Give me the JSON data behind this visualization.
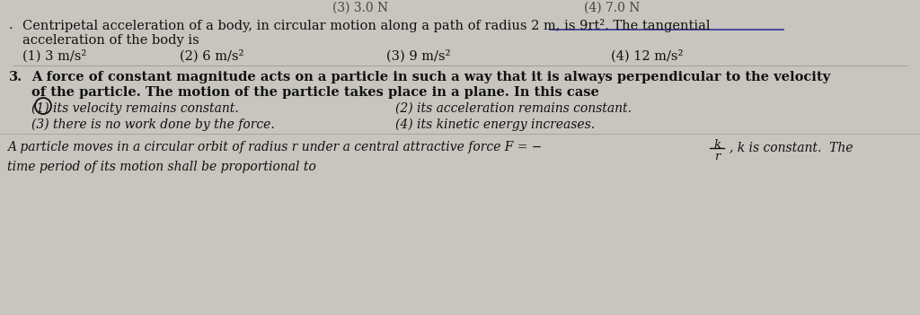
{
  "bg_color": "#c8c5be",
  "text_color": "#111111",
  "top_text_left": "(3) 3.0 N",
  "top_text_right": "(4) 7.0 N",
  "q2_num": ".",
  "q2_line1": "Centripetal acceleration of a body, in circular motion along a path of radius 2 m, is 9rt². The tangential",
  "q2_line2": "acceleration of the body is",
  "q2_opt1": "(1) 3 m/s²",
  "q2_opt2": "(2) 6 m/s²",
  "q2_opt3": "(3) 9 m/s²",
  "q2_opt4": "(4) 12 m/s²",
  "q3_num": "3.",
  "q3_line1": "A force of constant magnitude acts on a particle in such a way that it is always perpendicular to the velocity",
  "q3_line2": "of the particle. The motion of the particle takes place in a plane. In this case",
  "q3_opt1": "(1) its velocity remains constant.",
  "q3_opt2": "(2) its acceleration remains constant.",
  "q3_opt3": "(3) there is no work done by the force.",
  "q3_opt4": "(4) its kinetic energy increases.",
  "q4_prefix": "A particle moves in a circular orbit of radius r under a central attractive force F = −",
  "q4_frac_num": "k",
  "q4_frac_den": "r",
  "q4_suffix": ", k is constant.  The",
  "q4_line2": "time period of its motion shAll be proportional to",
  "q4_line2_actual": "time period of its motion shall be proportional to",
  "underline_color": "#4040a0",
  "font_main": 10.5,
  "font_bold": 10.5,
  "font_italic": 10.0
}
